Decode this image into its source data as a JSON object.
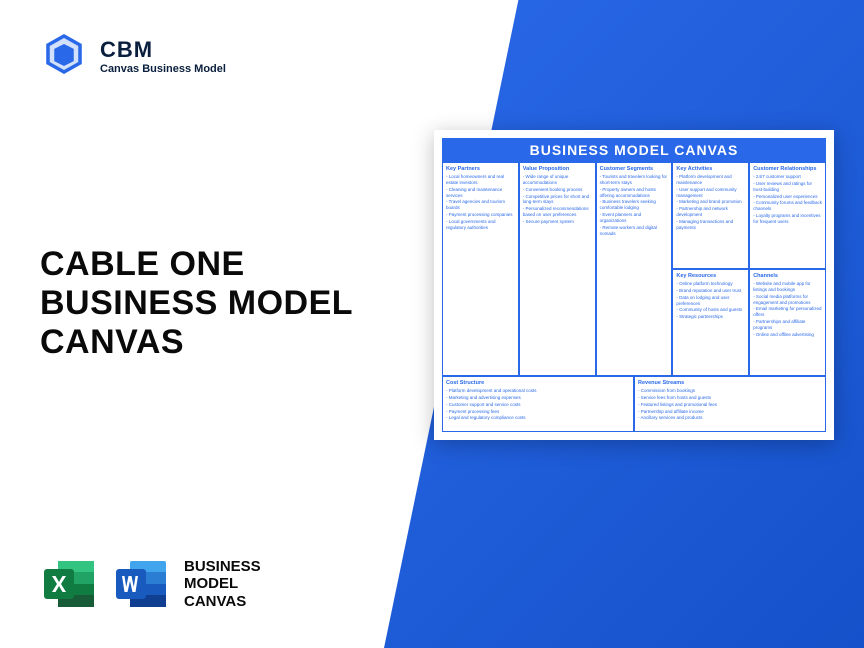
{
  "logo": {
    "title": "CBM",
    "sub": "Canvas Business Model"
  },
  "title": {
    "l1": "CABLE ONE",
    "l2": "BUSINESS MODEL",
    "l3": "CANVAS"
  },
  "canvas": {
    "header": "BUSINESS MODEL CANVAS",
    "partners": {
      "title": "Key Partners",
      "items": [
        "- Local homeowners and real estate investors",
        "- Cleaning and maintenance services",
        "- Travel agencies and tourism boards",
        "- Payment processing companies",
        "- Local governments and regulatory authorities"
      ]
    },
    "activities": {
      "title": "Key Activities",
      "items": [
        "- Platform development and maintenance",
        "- User support and community management",
        "- Marketing and brand promotion",
        "- Partnership and network development",
        "- Managing transactions and payments"
      ]
    },
    "resources": {
      "title": "Key Resources",
      "items": [
        "- Online platform technology",
        "- Brand reputation and user trust",
        "- Data on lodging and user preferences",
        "- Community of hosts and guests",
        "- Strategic partnerships"
      ]
    },
    "value": {
      "title": "Value Proposition",
      "items": [
        "- Wide range of unique accommodations",
        "- Convenient booking process",
        "- Competitive prices for short and long-term stays",
        "- Personalized recommendations based on user preferences",
        "- Secure payment system"
      ]
    },
    "relationships": {
      "title": "Customer Relationships",
      "items": [
        "- 24/7 customer support",
        "- User reviews and ratings for trust-building",
        "- Personalized user experiences",
        "- Community forums and feedback channels",
        "- Loyalty programs and incentives for frequent users"
      ]
    },
    "channels": {
      "title": "Channels",
      "items": [
        "- Website and mobile app for listings and bookings",
        "- Social media platforms for engagement and promotions",
        "- Email marketing for personalized offers",
        "- Partnerships and affiliate programs",
        "- Online and offline advertising"
      ]
    },
    "segments": {
      "title": "Customer Segments",
      "items": [
        "- Tourists and travelers looking for short-term stays",
        "- Property owners and hosts offering accommodations",
        "- Business travelers seeking comfortable lodging",
        "- Event planners and organizations",
        "- Remote workers and digital nomads"
      ]
    },
    "cost": {
      "title": "Cost Structure",
      "items": [
        "- Platform development and operational costs",
        "- Marketing and advertising expenses",
        "- Customer support and service costs",
        "- Payment processing fees",
        "- Legal and regulatory compliance costs"
      ]
    },
    "revenue": {
      "title": "Revenue Streams",
      "items": [
        "- Commission from bookings",
        "- Service fees from hosts and guests",
        "- Featured listings and promotional fees",
        "- Partnership and affiliate income",
        "- Ancillary services and products"
      ]
    }
  },
  "apps": {
    "l1": "BUSINESS",
    "l2": "MODEL",
    "l3": "CANVAS"
  },
  "colors": {
    "blue": "#2968e8",
    "dark": "#0a1f3d",
    "excel": "#107c41",
    "word": "#185abd"
  }
}
